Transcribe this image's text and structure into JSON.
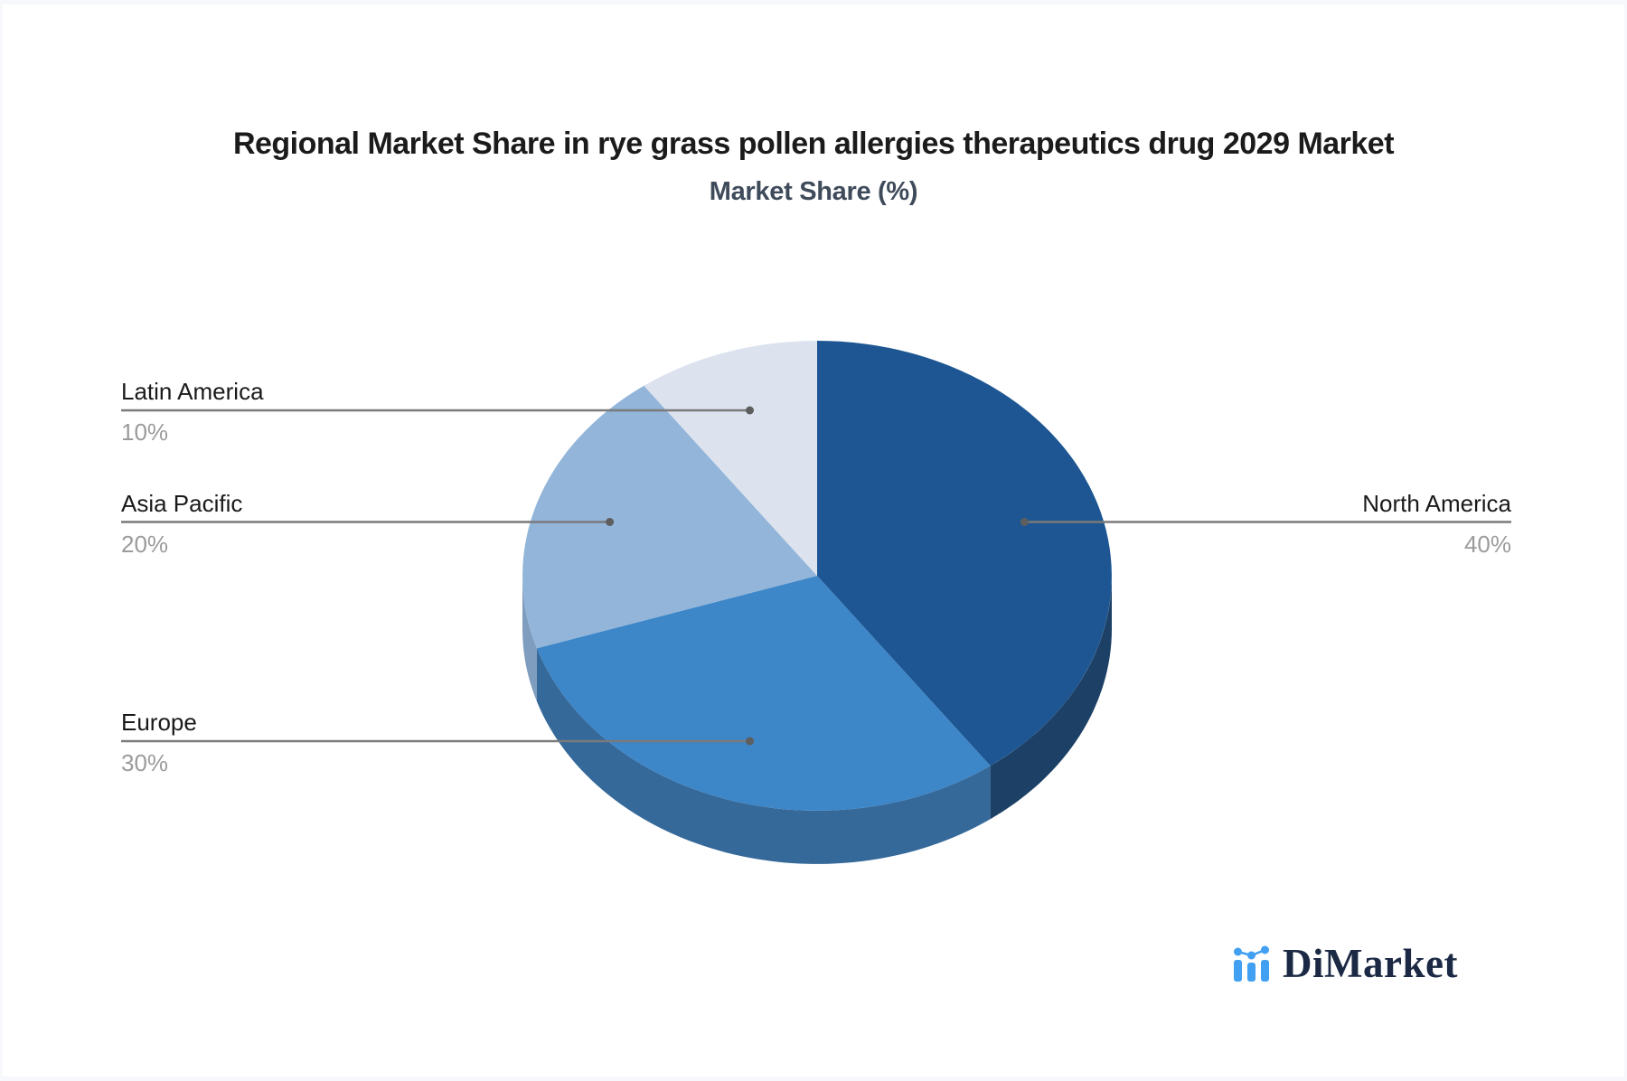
{
  "chart_data": {
    "type": "pie",
    "effect": "3d",
    "direction": "clockwise",
    "start_angle": "12 o'clock",
    "title": "Regional Market Share in rye grass pollen allergies therapeutics drug 2029 Market",
    "subtitle": "Market Share (%)",
    "unit": "%",
    "total": 100,
    "legend_position": "callout labels with leader lines",
    "slices": [
      {
        "label": "North America",
        "value": 40,
        "value_label": "40%",
        "color": "#1d5692",
        "side_color": "#1d4066"
      },
      {
        "label": "Europe",
        "value": 30,
        "value_label": "30%",
        "color": "#3d86c8",
        "side_color": "#35699a"
      },
      {
        "label": "Asia Pacific",
        "value": 20,
        "value_label": "20%",
        "color": "#92b5d9",
        "side_color": "#7f9dbf"
      },
      {
        "label": "Latin America",
        "value": 10,
        "value_label": "10%",
        "color": "#dce3ef",
        "side_color": "#b9c4d6"
      }
    ]
  },
  "palette": {
    "leader_line": "#7a7a7a",
    "leader_dot": "#5e5e5e",
    "title_text": "#1b1b1b",
    "subtitle_text": "#3f4b5b",
    "value_text": "#9b9b9b",
    "brand_navy": "#1b2944",
    "brand_blue": "#42a0f3"
  },
  "brand": {
    "name": "DiMarket",
    "icon": "bar-line-chart-icon"
  }
}
